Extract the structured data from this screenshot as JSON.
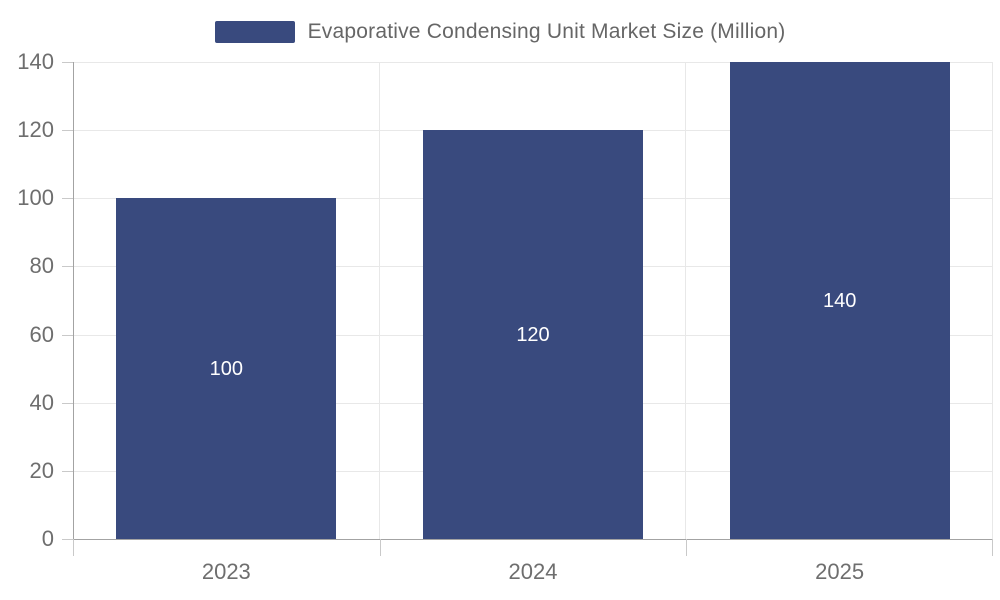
{
  "chart_data": {
    "type": "bar",
    "title": "Evaporative Condensing Unit Market Size (Million)",
    "series_name": "Evaporative Condensing Unit Market Size (Million)",
    "categories": [
      "2023",
      "2024",
      "2025"
    ],
    "values": [
      100,
      120,
      140
    ],
    "bar_value_labels": [
      "100",
      "120",
      "140"
    ],
    "xlabel": "",
    "ylabel": "",
    "ylim": [
      0,
      140
    ],
    "yticks": [
      0,
      20,
      40,
      60,
      80,
      100,
      120,
      140
    ],
    "grid": true,
    "legend_position": "top-center",
    "colors": {
      "bar_fill": "#394A7E",
      "bar_value_label": "#FFFFFF",
      "axis_line": "#A3A3A3",
      "tick_mark": "#C9C9C9",
      "gridline": "#E8E8E8",
      "axis_text": "#6E6E6E",
      "legend_text": "#666666",
      "background": "#FFFFFF"
    }
  }
}
